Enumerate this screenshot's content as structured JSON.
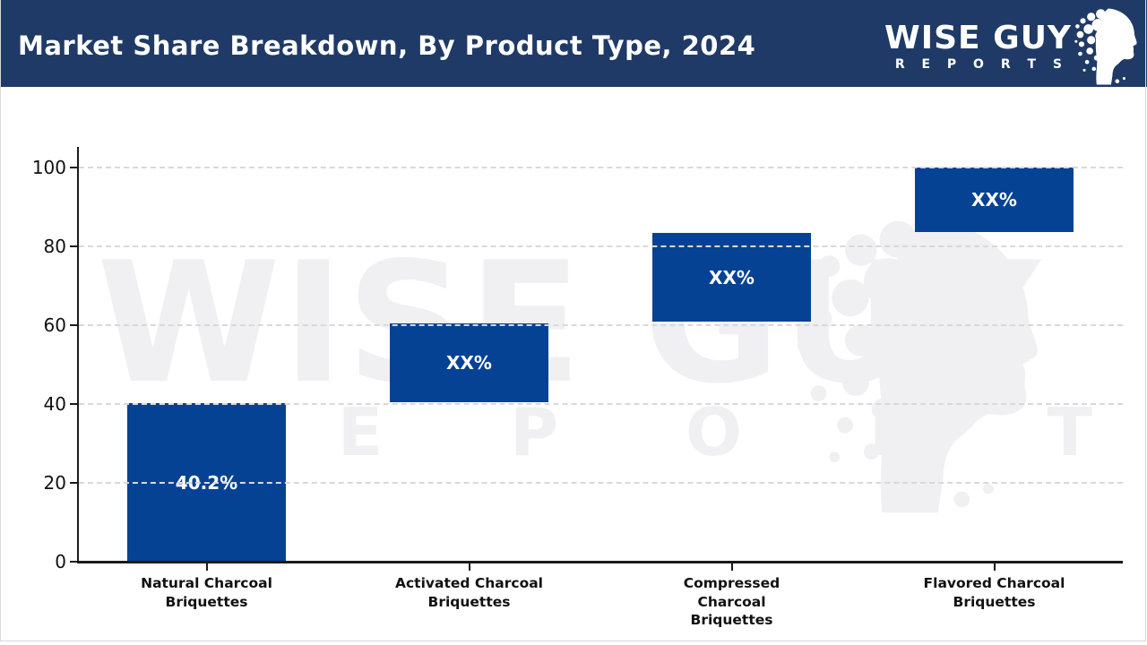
{
  "header": {
    "title": "Market Share Breakdown, By Product Type, 2024",
    "logo": {
      "line1": "WISE GUY",
      "line2": "R E P O R T S"
    }
  },
  "watermark": {
    "line1": "WISE GUY",
    "line2": "R E P O R T S"
  },
  "colors": {
    "header_bg": "#1f3a66",
    "bar": "#064293",
    "bar_label": "#ffffff",
    "grid": "#d9d9d9",
    "axis": "#1a1a1a",
    "watermark": "#f0f0f3"
  },
  "chart_data": {
    "type": "bar",
    "subtype": "waterfall",
    "title": "Market Share Breakdown, By Product Type, 2024",
    "categories": [
      "Natural Charcoal\nBriquettes",
      "Activated Charcoal\nBriquettes",
      "Compressed\nCharcoal\nBriquettes",
      "Flavored Charcoal\nBriquettes"
    ],
    "segments": [
      {
        "start": 0,
        "end": 40.2,
        "label": "40.2%"
      },
      {
        "start": 40.4,
        "end": 60.4,
        "label": "XX%"
      },
      {
        "start": 61.0,
        "end": 83.3,
        "label": "XX%"
      },
      {
        "start": 83.7,
        "end": 100,
        "label": "XX%"
      }
    ],
    "ylabel": "",
    "xlabel": "",
    "ylim": [
      0,
      105
    ],
    "yticks": [
      0,
      20,
      40,
      60,
      80,
      100
    ],
    "grid": true,
    "legend": false
  }
}
